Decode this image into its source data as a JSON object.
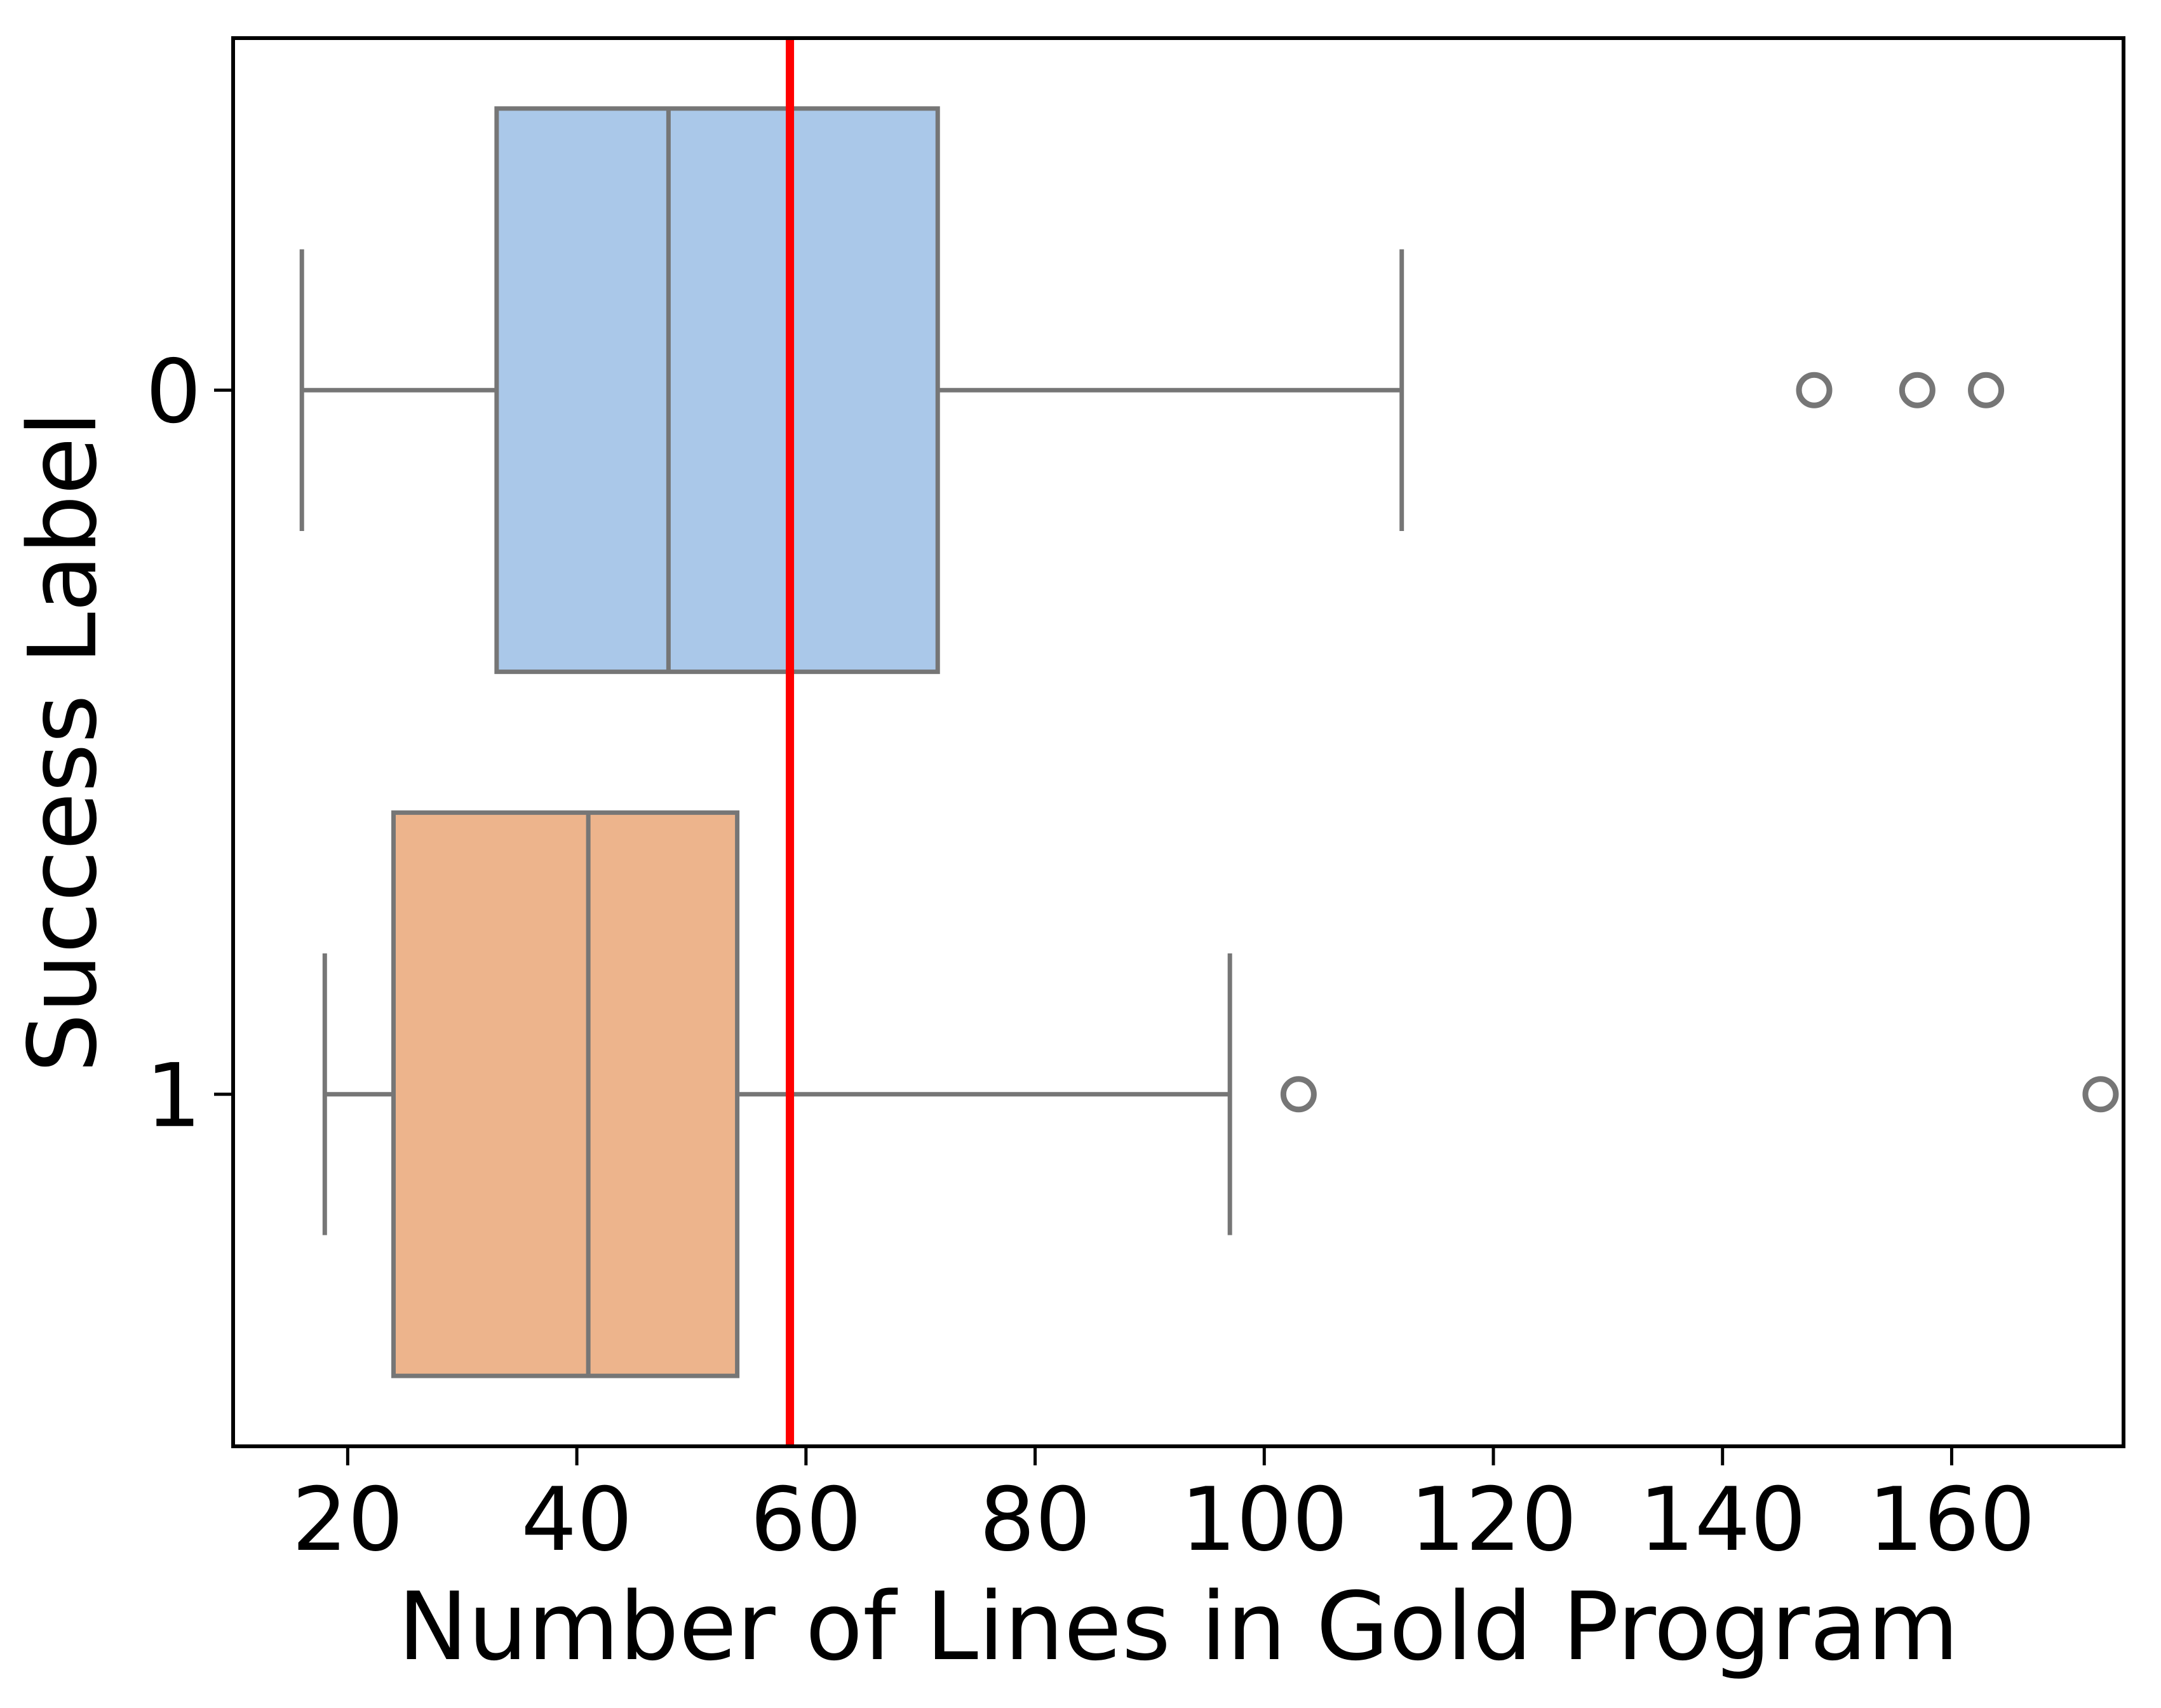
{
  "chart_data": {
    "type": "boxplot",
    "orientation": "horizontal",
    "title": "",
    "xlabel": "Number of Lines in Gold Program",
    "ylabel": "Success Label",
    "categories": [
      "0",
      "1"
    ],
    "xlim": [
      10,
      175
    ],
    "xticks": [
      20,
      40,
      60,
      80,
      100,
      120,
      140,
      160
    ],
    "grid": false,
    "legend": "none",
    "series": [
      {
        "label": "0",
        "whisker_min": 16,
        "q1": 33,
        "median": 48,
        "q3": 71.5,
        "whisker_max": 112,
        "outliers": [
          148,
          157,
          163
        ],
        "fill_color": "#aac8e9"
      },
      {
        "label": "1",
        "whisker_min": 18,
        "q1": 24,
        "median": 41,
        "q3": 54,
        "whisker_max": 97,
        "outliers": [
          103,
          173
        ],
        "fill_color": "#edb48c"
      }
    ],
    "reference_line": {
      "x": 58.6,
      "color": "#ff0000"
    },
    "colors": {
      "box_edge": "#767676",
      "whisker": "#767676",
      "median": "#767676",
      "outlier_edge": "#767676",
      "spine": "#000000",
      "tick": "#000000"
    }
  }
}
